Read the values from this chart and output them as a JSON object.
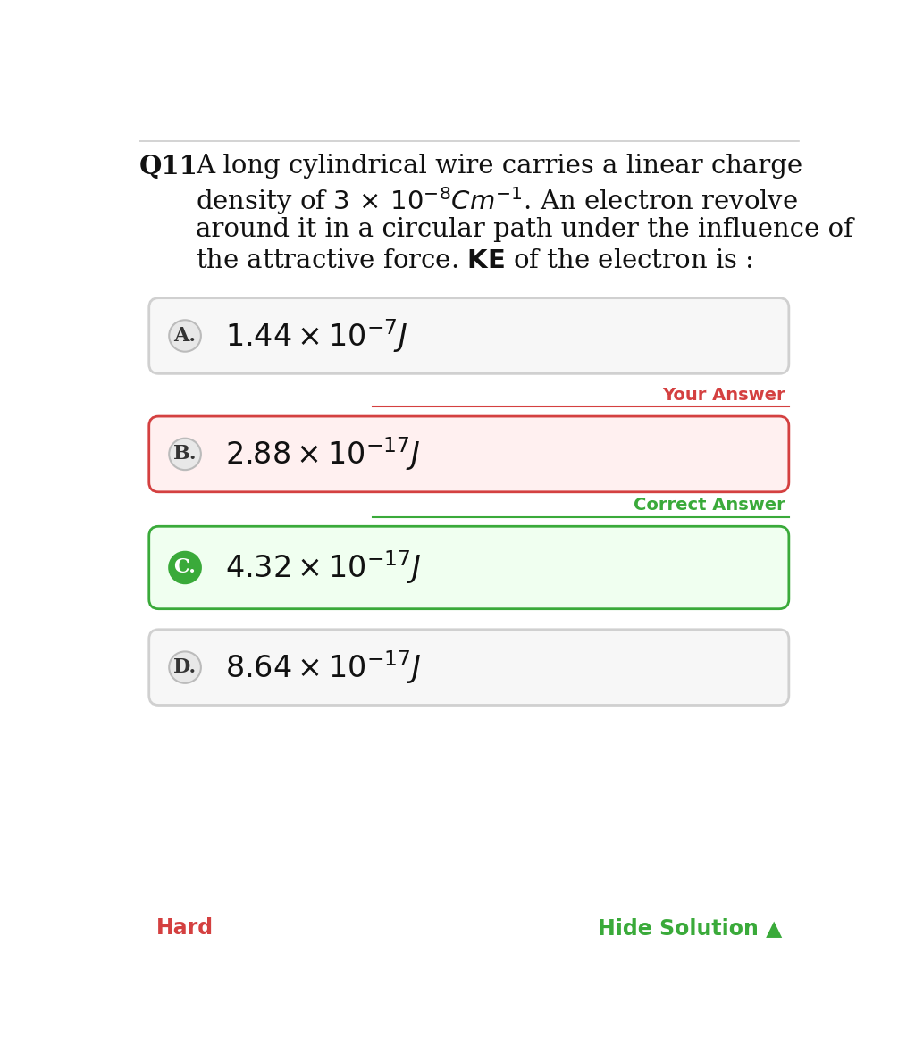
{
  "background_color": "#ffffff",
  "top_line_color": "#cccccc",
  "question_number": "Q11",
  "question_lines": [
    {
      "parts": [
        {
          "text": "A long cylindrical wire carries a linear charge",
          "style": "normal"
        }
      ]
    },
    {
      "parts": [
        {
          "text": "density of 3 × 10",
          "style": "normal"
        },
        {
          "text": "−8",
          "style": "super"
        },
        {
          "text": "Cm",
          "style": "italic"
        },
        {
          "text": "−1",
          "style": "super"
        },
        {
          "text": ". An electron revolve",
          "style": "normal"
        }
      ]
    },
    {
      "parts": [
        {
          "text": "around it in a circular path under the influence of",
          "style": "normal"
        }
      ]
    },
    {
      "parts": [
        {
          "text": "the attractive force. ",
          "style": "normal"
        },
        {
          "text": "KE",
          "style": "bolditalic"
        },
        {
          "text": " of the electron is :",
          "style": "normal"
        }
      ]
    }
  ],
  "options": [
    {
      "label": "A",
      "text_pre": "1.44 × 10",
      "text_exp": "−7",
      "text_post": "J",
      "box_border_color": "#d0d0d0",
      "box_fill_color": "#f7f7f7",
      "label_bg": "#e8e8e8",
      "label_border": "#bbbbbb",
      "label_text_color": "#333333",
      "tag": null,
      "tag_color": null
    },
    {
      "label": "B",
      "text_pre": "2.88 × 10",
      "text_exp": "−17",
      "text_post": "J",
      "box_border_color": "#d44040",
      "box_fill_color": "#fff0f0",
      "label_bg": "#e8e8e8",
      "label_border": "#bbbbbb",
      "label_text_color": "#333333",
      "tag": "Your Answer",
      "tag_color": "#d44040"
    },
    {
      "label": "C",
      "text_pre": "4.32 × 10",
      "text_exp": "−17",
      "text_post": "J",
      "box_border_color": "#3aaa3a",
      "box_fill_color": "#f0fff0",
      "label_bg": "#3aaa3a",
      "label_border": "#3aaa3a",
      "label_text_color": "#ffffff",
      "tag": "Correct Answer",
      "tag_color": "#3aaa3a"
    },
    {
      "label": "D",
      "text_pre": "8.64 × 10",
      "text_exp": "−17",
      "text_post": "J",
      "box_border_color": "#d0d0d0",
      "box_fill_color": "#f7f7f7",
      "label_bg": "#e8e8e8",
      "label_border": "#bbbbbb",
      "label_text_color": "#333333",
      "tag": null,
      "tag_color": null
    }
  ],
  "q_text_fontsize": 21,
  "opt_fontsize": 24,
  "bottom_left_text": "Hard",
  "bottom_right_text": "Hide Solution ▲",
  "bottom_left_color": "#d44040",
  "bottom_right_color": "#3aaa3a"
}
